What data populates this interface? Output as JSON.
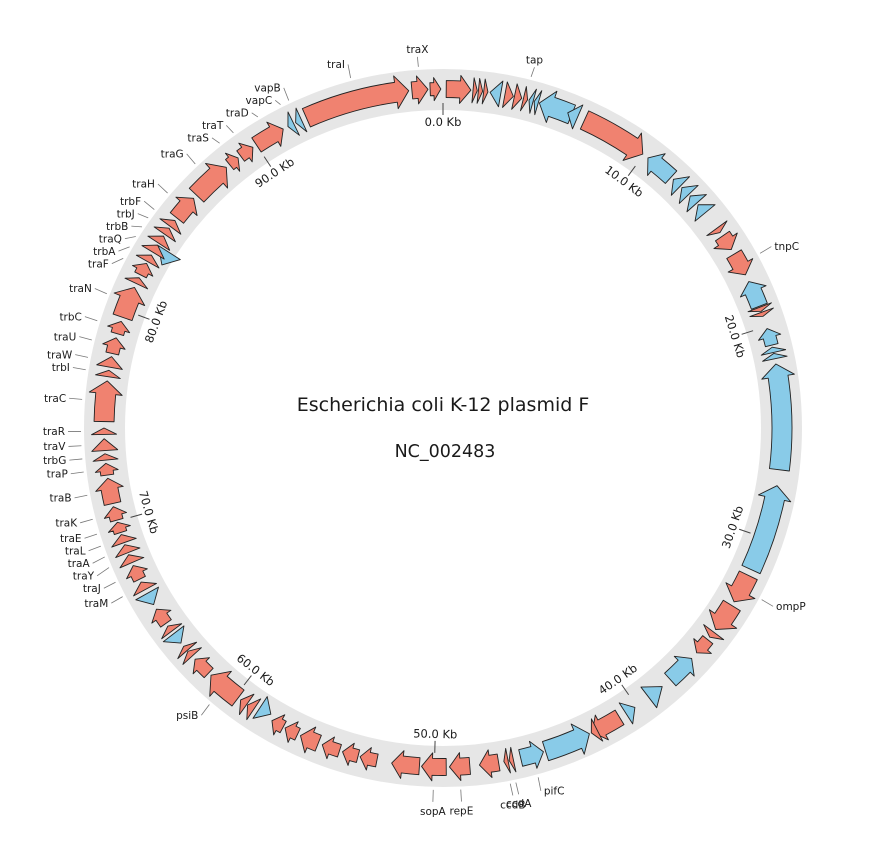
{
  "chart_data": {
    "type": "circular-genome-map",
    "title": "Escherichia coli K-12 plasmid F",
    "subtitle": "NC_002483",
    "unit": "Kb",
    "total_kb": 99.2,
    "ticks_kb": [
      0,
      10,
      20,
      30,
      40,
      50,
      60,
      70,
      80,
      90
    ],
    "tick_labels": [
      "0.0 Kb",
      "10.0 Kb",
      "20.0 Kb",
      "30.0 Kb",
      "40.0 Kb",
      "50.0 Kb",
      "60.0 Kb",
      "70.0 Kb",
      "80.0 Kb",
      "90.0 Kb"
    ],
    "legend": "none",
    "colors": {
      "forward_strand": "#F08270",
      "reverse_strand": "#89CBE8",
      "ring": "#E6E6E6",
      "outline": "#222222",
      "leader_line": "#777777",
      "text": "#1a1a1a",
      "background": "#ffffff"
    },
    "features": [
      {
        "label": null,
        "start_kb": 0.15,
        "end_kb": 1.3,
        "strand": "+",
        "size": "med"
      },
      {
        "label": null,
        "start_kb": 1.4,
        "end_kb": 1.6,
        "strand": "+",
        "size": "sliver"
      },
      {
        "label": null,
        "start_kb": 1.65,
        "end_kb": 1.85,
        "strand": "+",
        "size": "sliver"
      },
      {
        "label": null,
        "start_kb": 1.9,
        "end_kb": 2.1,
        "strand": "+",
        "size": "sliver"
      },
      {
        "label": null,
        "start_kb": 2.2,
        "end_kb": 2.7,
        "strand": "-",
        "size": "tri"
      },
      {
        "label": null,
        "start_kb": 2.9,
        "end_kb": 3.3,
        "strand": "+",
        "size": "tri"
      },
      {
        "label": null,
        "start_kb": 3.35,
        "end_kb": 3.7,
        "strand": "+",
        "size": "tri"
      },
      {
        "label": "tap",
        "start_kb": 3.78,
        "end_kb": 3.98,
        "strand": "+",
        "size": "sliver"
      },
      {
        "label": null,
        "start_kb": 4.05,
        "end_kb": 4.25,
        "strand": "-",
        "size": "sliver"
      },
      {
        "label": null,
        "start_kb": 4.3,
        "end_kb": 4.5,
        "strand": "-",
        "size": "sliver"
      },
      {
        "label": null,
        "start_kb": 4.55,
        "end_kb": 6.15,
        "strand": "-",
        "size": "big"
      },
      {
        "label": null,
        "start_kb": 5.95,
        "end_kb": 6.45,
        "strand": "-",
        "size": "tri"
      },
      {
        "label": null,
        "start_kb": 6.8,
        "end_kb": 9.95,
        "strand": "+",
        "size": "big"
      },
      {
        "label": null,
        "start_kb": 10.25,
        "end_kb": 11.65,
        "strand": "-",
        "size": "med"
      },
      {
        "label": null,
        "start_kb": 11.8,
        "end_kb": 12.25,
        "strand": "-",
        "size": "tri"
      },
      {
        "label": null,
        "start_kb": 12.35,
        "end_kb": 12.8,
        "strand": "-",
        "size": "tri"
      },
      {
        "label": null,
        "start_kb": 12.9,
        "end_kb": 13.35,
        "strand": "-",
        "size": "tri"
      },
      {
        "label": null,
        "start_kb": 13.45,
        "end_kb": 13.95,
        "strand": "-",
        "size": "tri"
      },
      {
        "label": null,
        "start_kb": 14.85,
        "end_kb": 15.1,
        "strand": "+",
        "size": "sliver"
      },
      {
        "label": null,
        "start_kb": 15.3,
        "end_kb": 16.05,
        "strand": "+",
        "size": "med"
      },
      {
        "label": "tnpC",
        "start_kb": 16.3,
        "end_kb": 17.4,
        "strand": "+",
        "size": "med"
      },
      {
        "label": null,
        "start_kb": 17.75,
        "end_kb": 19.0,
        "strand": "-",
        "size": "med"
      },
      {
        "label": null,
        "start_kb": 19.05,
        "end_kb": 19.25,
        "strand": "+",
        "size": "sliver"
      },
      {
        "label": null,
        "start_kb": 19.3,
        "end_kb": 19.5,
        "strand": "+",
        "size": "sliver"
      },
      {
        "label": null,
        "start_kb": 20.1,
        "end_kb": 20.9,
        "strand": "-",
        "size": "small"
      },
      {
        "label": null,
        "start_kb": 21.0,
        "end_kb": 21.25,
        "strand": "-",
        "size": "sliver"
      },
      {
        "label": null,
        "start_kb": 21.3,
        "end_kb": 21.55,
        "strand": "-",
        "size": "sliver"
      },
      {
        "label": null,
        "start_kb": 21.8,
        "end_kb": 26.75,
        "strand": "-",
        "size": "big"
      },
      {
        "label": null,
        "start_kb": 27.5,
        "end_kb": 31.6,
        "strand": "-",
        "size": "big"
      },
      {
        "label": "ompP",
        "start_kb": 31.9,
        "end_kb": 33.3,
        "strand": "+",
        "size": "big"
      },
      {
        "label": null,
        "start_kb": 33.5,
        "end_kb": 34.85,
        "strand": "+",
        "size": "big"
      },
      {
        "label": null,
        "start_kb": 35.0,
        "end_kb": 35.3,
        "strand": "+",
        "size": "sliver"
      },
      {
        "label": null,
        "start_kb": 35.45,
        "end_kb": 36.25,
        "strand": "+",
        "size": "small"
      },
      {
        "label": null,
        "start_kb": 36.6,
        "end_kb": 38.0,
        "strand": "-",
        "size": "med"
      },
      {
        "label": null,
        "start_kb": 38.5,
        "end_kb": 39.3,
        "strand": "-",
        "size": "tri"
      },
      {
        "label": null,
        "start_kb": 40.1,
        "end_kb": 40.6,
        "strand": "-",
        "size": "sliver"
      },
      {
        "label": null,
        "start_kb": 40.95,
        "end_kb": 42.4,
        "strand": "+",
        "size": "med"
      },
      {
        "label": null,
        "start_kb": 42.15,
        "end_kb": 42.45,
        "strand": "+",
        "size": "sliver"
      },
      {
        "label": null,
        "start_kb": 42.55,
        "end_kb": 44.75,
        "strand": "-",
        "size": "big"
      },
      {
        "label": "pifC",
        "start_kb": 44.85,
        "end_kb": 45.95,
        "strand": "-",
        "size": "med"
      },
      {
        "label": "ccdA",
        "start_kb": 46.3,
        "end_kb": 46.5,
        "strand": "+",
        "size": "sliver"
      },
      {
        "label": "ccdB",
        "start_kb": 46.55,
        "end_kb": 46.75,
        "strand": "+",
        "size": "sliver"
      },
      {
        "label": null,
        "start_kb": 47.0,
        "end_kb": 47.9,
        "strand": "+",
        "size": "med"
      },
      {
        "label": "repE",
        "start_kb": 48.35,
        "end_kb": 49.3,
        "strand": "+",
        "size": "med"
      },
      {
        "label": "sopA",
        "start_kb": 49.45,
        "end_kb": 50.6,
        "strand": "+",
        "size": "med"
      },
      {
        "label": null,
        "start_kb": 50.7,
        "end_kb": 52.0,
        "strand": "+",
        "size": "med"
      },
      {
        "label": null,
        "start_kb": 52.7,
        "end_kb": 53.5,
        "strand": "+",
        "size": "small"
      },
      {
        "label": null,
        "start_kb": 53.6,
        "end_kb": 54.35,
        "strand": "+",
        "size": "small"
      },
      {
        "label": null,
        "start_kb": 54.5,
        "end_kb": 55.35,
        "strand": "+",
        "size": "small"
      },
      {
        "label": null,
        "start_kb": 55.55,
        "end_kb": 56.45,
        "strand": "+",
        "size": "med"
      },
      {
        "label": null,
        "start_kb": 56.6,
        "end_kb": 57.25,
        "strand": "+",
        "size": "small"
      },
      {
        "label": null,
        "start_kb": 57.35,
        "end_kb": 57.95,
        "strand": "+",
        "size": "small"
      },
      {
        "label": null,
        "start_kb": 58.15,
        "end_kb": 58.75,
        "strand": "-",
        "size": "tri",
        "r_off": -5
      },
      {
        "label": null,
        "start_kb": 58.95,
        "end_kb": 59.3,
        "strand": "+",
        "size": "sliver"
      },
      {
        "label": null,
        "start_kb": 59.35,
        "end_kb": 59.7,
        "strand": "+",
        "size": "sliver"
      },
      {
        "label": "psiB",
        "start_kb": 59.85,
        "end_kb": 61.5,
        "strand": "+",
        "size": "big"
      },
      {
        "label": null,
        "start_kb": 61.65,
        "end_kb": 62.55,
        "strand": "+",
        "size": "small"
      },
      {
        "label": null,
        "start_kb": 62.75,
        "end_kb": 63.05,
        "strand": "+",
        "size": "sliver"
      },
      {
        "label": null,
        "start_kb": 63.1,
        "end_kb": 63.35,
        "strand": "+",
        "size": "sliver"
      },
      {
        "label": null,
        "start_kb": 63.55,
        "end_kb": 64.1,
        "strand": "-",
        "size": "tri"
      },
      {
        "label": null,
        "start_kb": 64.25,
        "end_kb": 64.55,
        "strand": "+",
        "size": "sliver"
      },
      {
        "label": null,
        "start_kb": 64.7,
        "end_kb": 65.5,
        "strand": "+",
        "size": "small"
      },
      {
        "label": null,
        "start_kb": 65.75,
        "end_kb": 66.35,
        "strand": "-",
        "size": "tri"
      },
      {
        "label": "traM",
        "start_kb": 66.55,
        "end_kb": 66.95,
        "strand": "+",
        "size": "tri"
      },
      {
        "label": "traJ",
        "start_kb": 67.1,
        "end_kb": 67.8,
        "strand": "+",
        "size": "small"
      },
      {
        "label": "traY",
        "start_kb": 67.95,
        "end_kb": 68.35,
        "strand": "+",
        "size": "tri"
      },
      {
        "label": "traA",
        "start_kb": 68.45,
        "end_kb": 68.85,
        "strand": "+",
        "size": "tri"
      },
      {
        "label": "traL",
        "start_kb": 68.95,
        "end_kb": 69.35,
        "strand": "+",
        "size": "tri"
      },
      {
        "label": "traE",
        "start_kb": 69.45,
        "end_kb": 69.95,
        "strand": "+",
        "size": "small"
      },
      {
        "label": "traK",
        "start_kb": 70.05,
        "end_kb": 70.7,
        "strand": "+",
        "size": "small"
      },
      {
        "label": "traB",
        "start_kb": 70.85,
        "end_kb": 72.05,
        "strand": "+",
        "size": "med"
      },
      {
        "label": "traP",
        "start_kb": 72.2,
        "end_kb": 72.75,
        "strand": "+",
        "size": "small"
      },
      {
        "label": "trbG",
        "start_kb": 72.9,
        "end_kb": 73.2,
        "strand": "+",
        "size": "sliver"
      },
      {
        "label": "traV",
        "start_kb": 73.35,
        "end_kb": 73.9,
        "strand": "+",
        "size": "tri"
      },
      {
        "label": "traR",
        "start_kb": 74.1,
        "end_kb": 74.4,
        "strand": "+",
        "size": "sliver"
      },
      {
        "label": "traC",
        "start_kb": 74.7,
        "end_kb": 76.6,
        "strand": "+",
        "size": "big"
      },
      {
        "label": "trbI",
        "start_kb": 76.8,
        "end_kb": 77.1,
        "strand": "+",
        "size": "sliver"
      },
      {
        "label": "traW",
        "start_kb": 77.25,
        "end_kb": 77.75,
        "strand": "+",
        "size": "tri"
      },
      {
        "label": "traU",
        "start_kb": 77.9,
        "end_kb": 78.65,
        "strand": "+",
        "size": "small"
      },
      {
        "label": "trbC",
        "start_kb": 78.85,
        "end_kb": 79.45,
        "strand": "+",
        "size": "small"
      },
      {
        "label": "traN",
        "start_kb": 79.65,
        "end_kb": 81.15,
        "strand": "+",
        "size": "big"
      },
      {
        "label": null,
        "start_kb": 81.35,
        "end_kb": 81.65,
        "strand": "+",
        "size": "sliver"
      },
      {
        "label": "traF",
        "start_kb": 81.8,
        "end_kb": 82.4,
        "strand": "+",
        "size": "small"
      },
      {
        "label": "trbA",
        "start_kb": 82.5,
        "end_kb": 82.85,
        "strand": "+",
        "size": "tri"
      },
      {
        "label": null,
        "start_kb": 82.7,
        "end_kb": 83.4,
        "strand": "-",
        "size": "tri",
        "r_off": -14
      },
      {
        "label": "traQ",
        "start_kb": 83.0,
        "end_kb": 83.4,
        "strand": "+",
        "size": "tri"
      },
      {
        "label": "trbB",
        "start_kb": 83.5,
        "end_kb": 83.9,
        "strand": "+",
        "size": "tri"
      },
      {
        "label": "trbJ",
        "start_kb": 84.0,
        "end_kb": 84.35,
        "strand": "+",
        "size": "tri"
      },
      {
        "label": "trbF",
        "start_kb": 84.45,
        "end_kb": 84.8,
        "strand": "+",
        "size": "tri"
      },
      {
        "label": "traH",
        "start_kb": 84.95,
        "end_kb": 86.15,
        "strand": "+",
        "size": "med"
      },
      {
        "label": "traG",
        "start_kb": 86.35,
        "end_kb": 88.25,
        "strand": "+",
        "size": "big"
      },
      {
        "label": "traS",
        "start_kb": 88.45,
        "end_kb": 88.95,
        "strand": "+",
        "size": "small"
      },
      {
        "label": "traT",
        "start_kb": 89.1,
        "end_kb": 89.8,
        "strand": "+",
        "size": "small"
      },
      {
        "label": "traD",
        "start_kb": 90.0,
        "end_kb": 91.45,
        "strand": "+",
        "size": "med"
      },
      {
        "label": "vapC",
        "start_kb": 91.7,
        "end_kb": 92.0,
        "strand": "-",
        "size": "tri"
      },
      {
        "label": "vapB",
        "start_kb": 92.1,
        "end_kb": 92.4,
        "strand": "-",
        "size": "tri"
      },
      {
        "label": "traI",
        "start_kb": 92.65,
        "end_kb": 97.6,
        "strand": "+",
        "size": "big"
      },
      {
        "label": "traX",
        "start_kb": 97.75,
        "end_kb": 98.5,
        "strand": "+",
        "size": "med"
      },
      {
        "label": null,
        "start_kb": 98.6,
        "end_kb": 99.1,
        "strand": "+",
        "size": "small"
      }
    ]
  }
}
